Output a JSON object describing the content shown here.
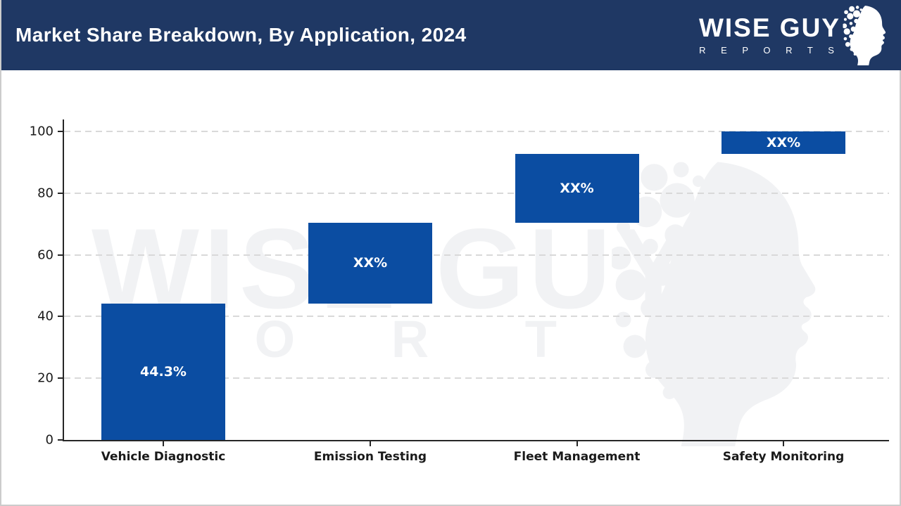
{
  "header": {
    "title": "Market Share Breakdown, By Application, 2024",
    "logo": {
      "line1": "WISE GUY",
      "line2": "R E P O R T S"
    }
  },
  "watermark": {
    "line1": "WISE GUY",
    "line2": "P O R T S"
  },
  "colors": {
    "header_bg": "#1f3864",
    "bar": "#0b4da2",
    "bar_label": "#ffffff",
    "grid": "#d9d9d9",
    "axis": "#262626",
    "text": "#1a1a1a",
    "watermark": "#f1f2f4",
    "border": "#cccccc"
  },
  "chart_data": {
    "type": "bar",
    "subtype": "waterfall",
    "title": "Market Share Breakdown, By Application, 2024",
    "categories": [
      "Vehicle Diagnostic",
      "Emission Testing",
      "Fleet Management",
      "Safety Monitoring"
    ],
    "segments": [
      {
        "category": "Vehicle Diagnostic",
        "start": 0,
        "end": 44.3,
        "label": "44.3%"
      },
      {
        "category": "Emission Testing",
        "start": 44.3,
        "end": 70.4,
        "label": "XX%"
      },
      {
        "category": "Fleet Management",
        "start": 70.4,
        "end": 92.7,
        "label": "XX%"
      },
      {
        "category": "Safety Monitoring",
        "start": 92.7,
        "end": 100,
        "label": "XX%"
      }
    ],
    "y_ticks": [
      0,
      20,
      40,
      60,
      80,
      100
    ],
    "ylim": [
      0,
      104
    ],
    "xlabel": "",
    "ylabel": "",
    "grid": "horizontal-dashed",
    "legend": "none",
    "bar_color": "#0b4da2"
  }
}
